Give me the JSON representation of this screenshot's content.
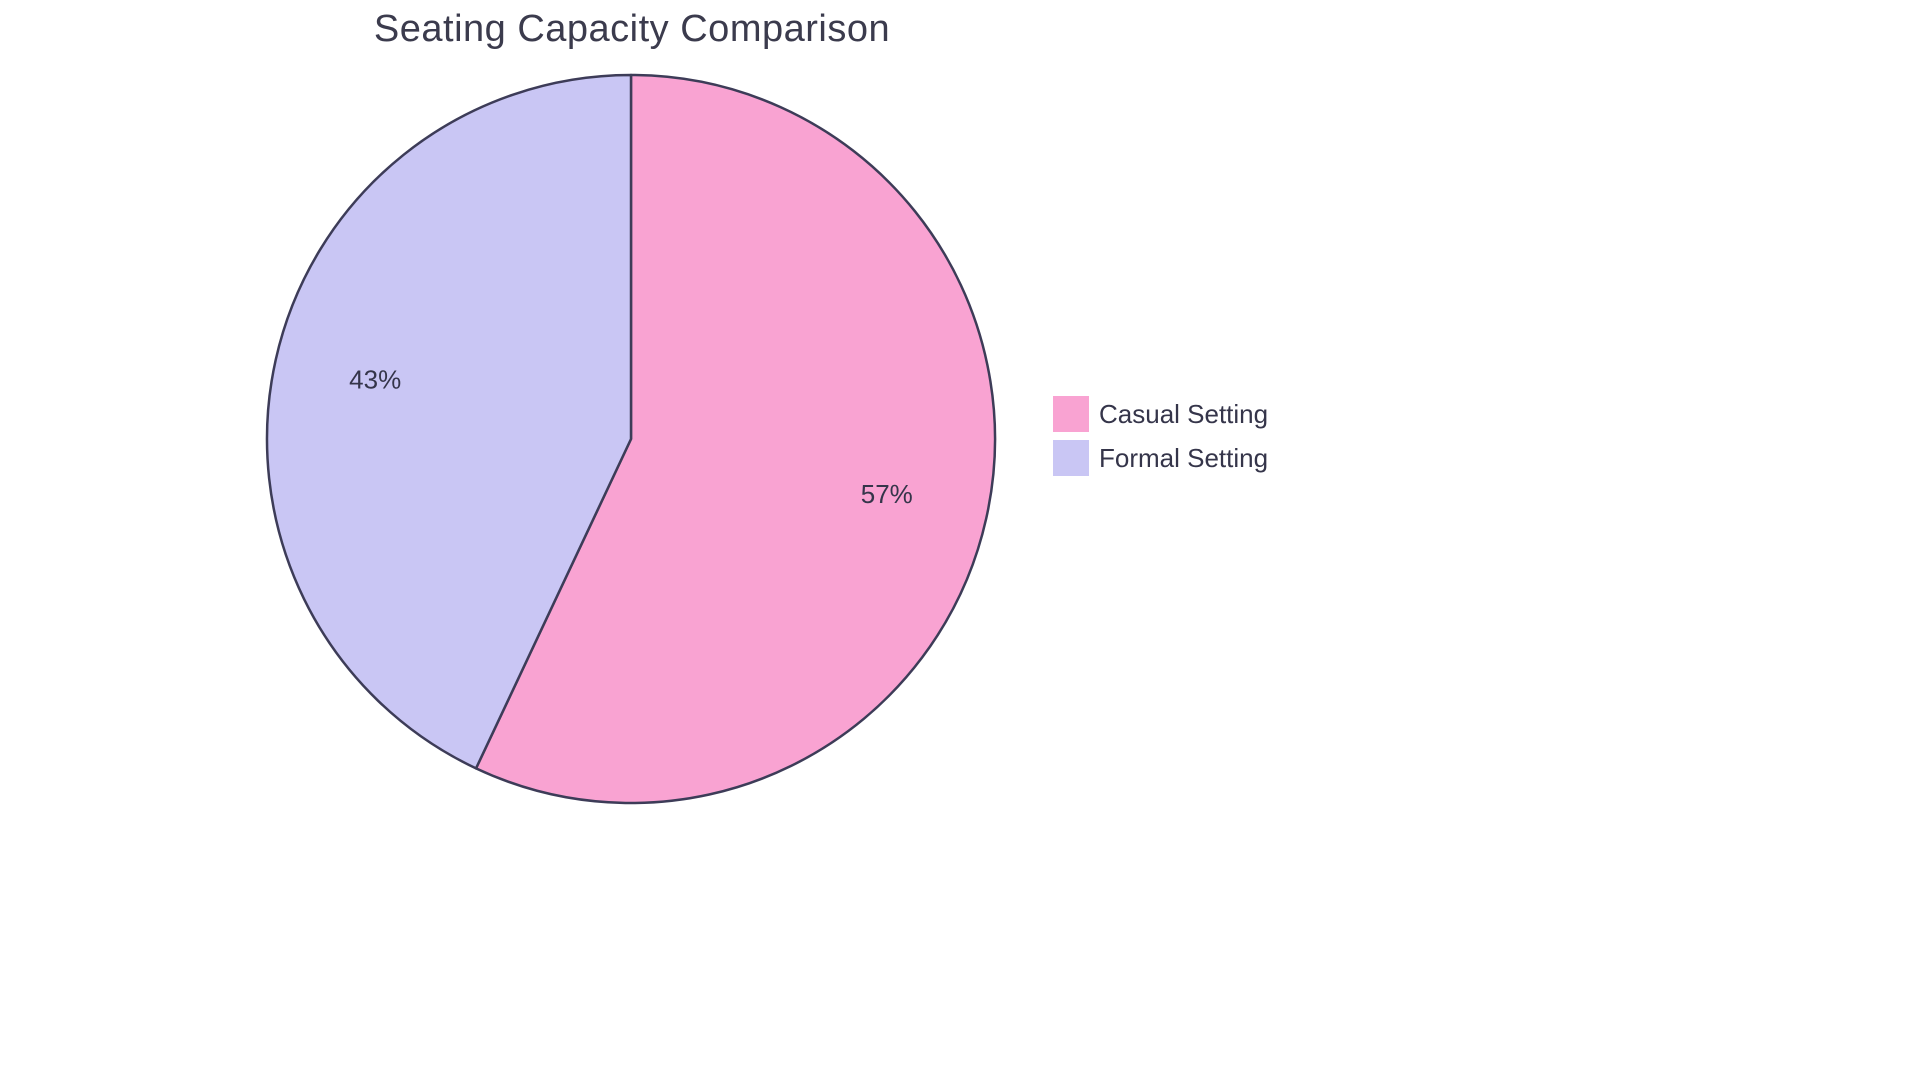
{
  "chart_data": {
    "type": "pie",
    "title": "Seating Capacity Comparison",
    "labels": [
      "Casual Setting",
      "Formal Setting"
    ],
    "values": [
      57,
      43
    ],
    "slice_labels": [
      "57%",
      "43%"
    ],
    "colors": [
      "#f9a3d2",
      "#c9c6f4"
    ],
    "stroke_color": "#3d3c58",
    "stroke_width": 2.5,
    "start_angle_deg": 0,
    "direction": "clockwise",
    "legend_position": "right",
    "background": "#ffffff"
  }
}
